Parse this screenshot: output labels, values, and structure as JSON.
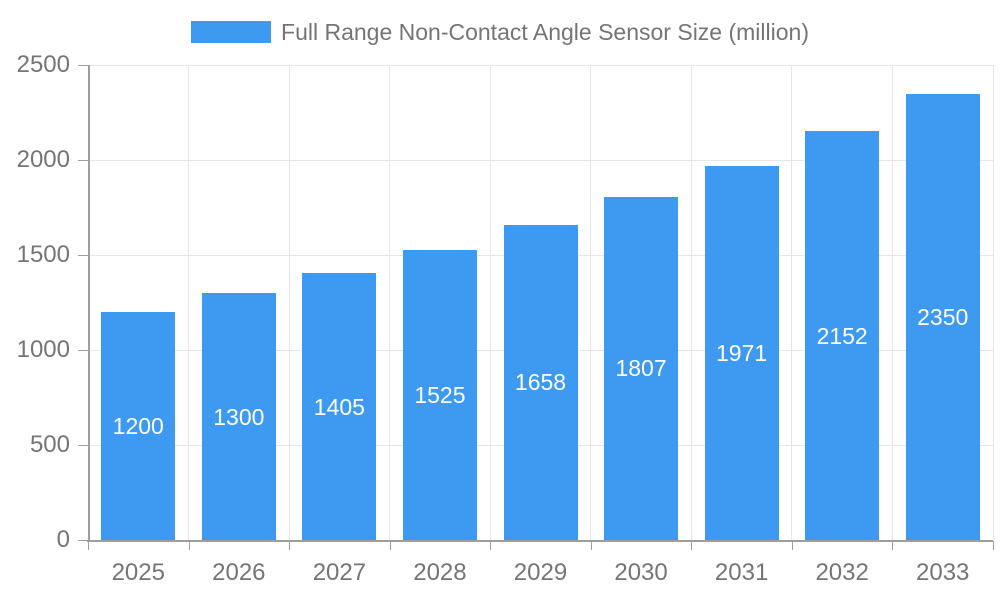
{
  "legend": {
    "label": "Full Range Non-Contact Angle Sensor Size (million)"
  },
  "chart_data": {
    "type": "bar",
    "title": "",
    "xlabel": "",
    "ylabel": "",
    "categories": [
      "2025",
      "2026",
      "2027",
      "2028",
      "2029",
      "2030",
      "2031",
      "2032",
      "2033"
    ],
    "series": [
      {
        "name": "Full Range Non-Contact Angle Sensor Size (million)",
        "values": [
          1200,
          1300,
          1405,
          1525,
          1658,
          1807,
          1971,
          2152,
          2350
        ]
      }
    ],
    "data_labels_shown": true,
    "ylim": [
      0,
      2500
    ],
    "yticks": [
      0,
      500,
      1000,
      1500,
      2000,
      2500
    ],
    "grid": true,
    "legend_position": "top",
    "colors": {
      "bar": "#3D9AF0",
      "bar_label_text": "#ffffff",
      "axis_text": "#757575",
      "grid_line": "#e6e6e6",
      "axis_line": "#9e9e9e"
    }
  }
}
